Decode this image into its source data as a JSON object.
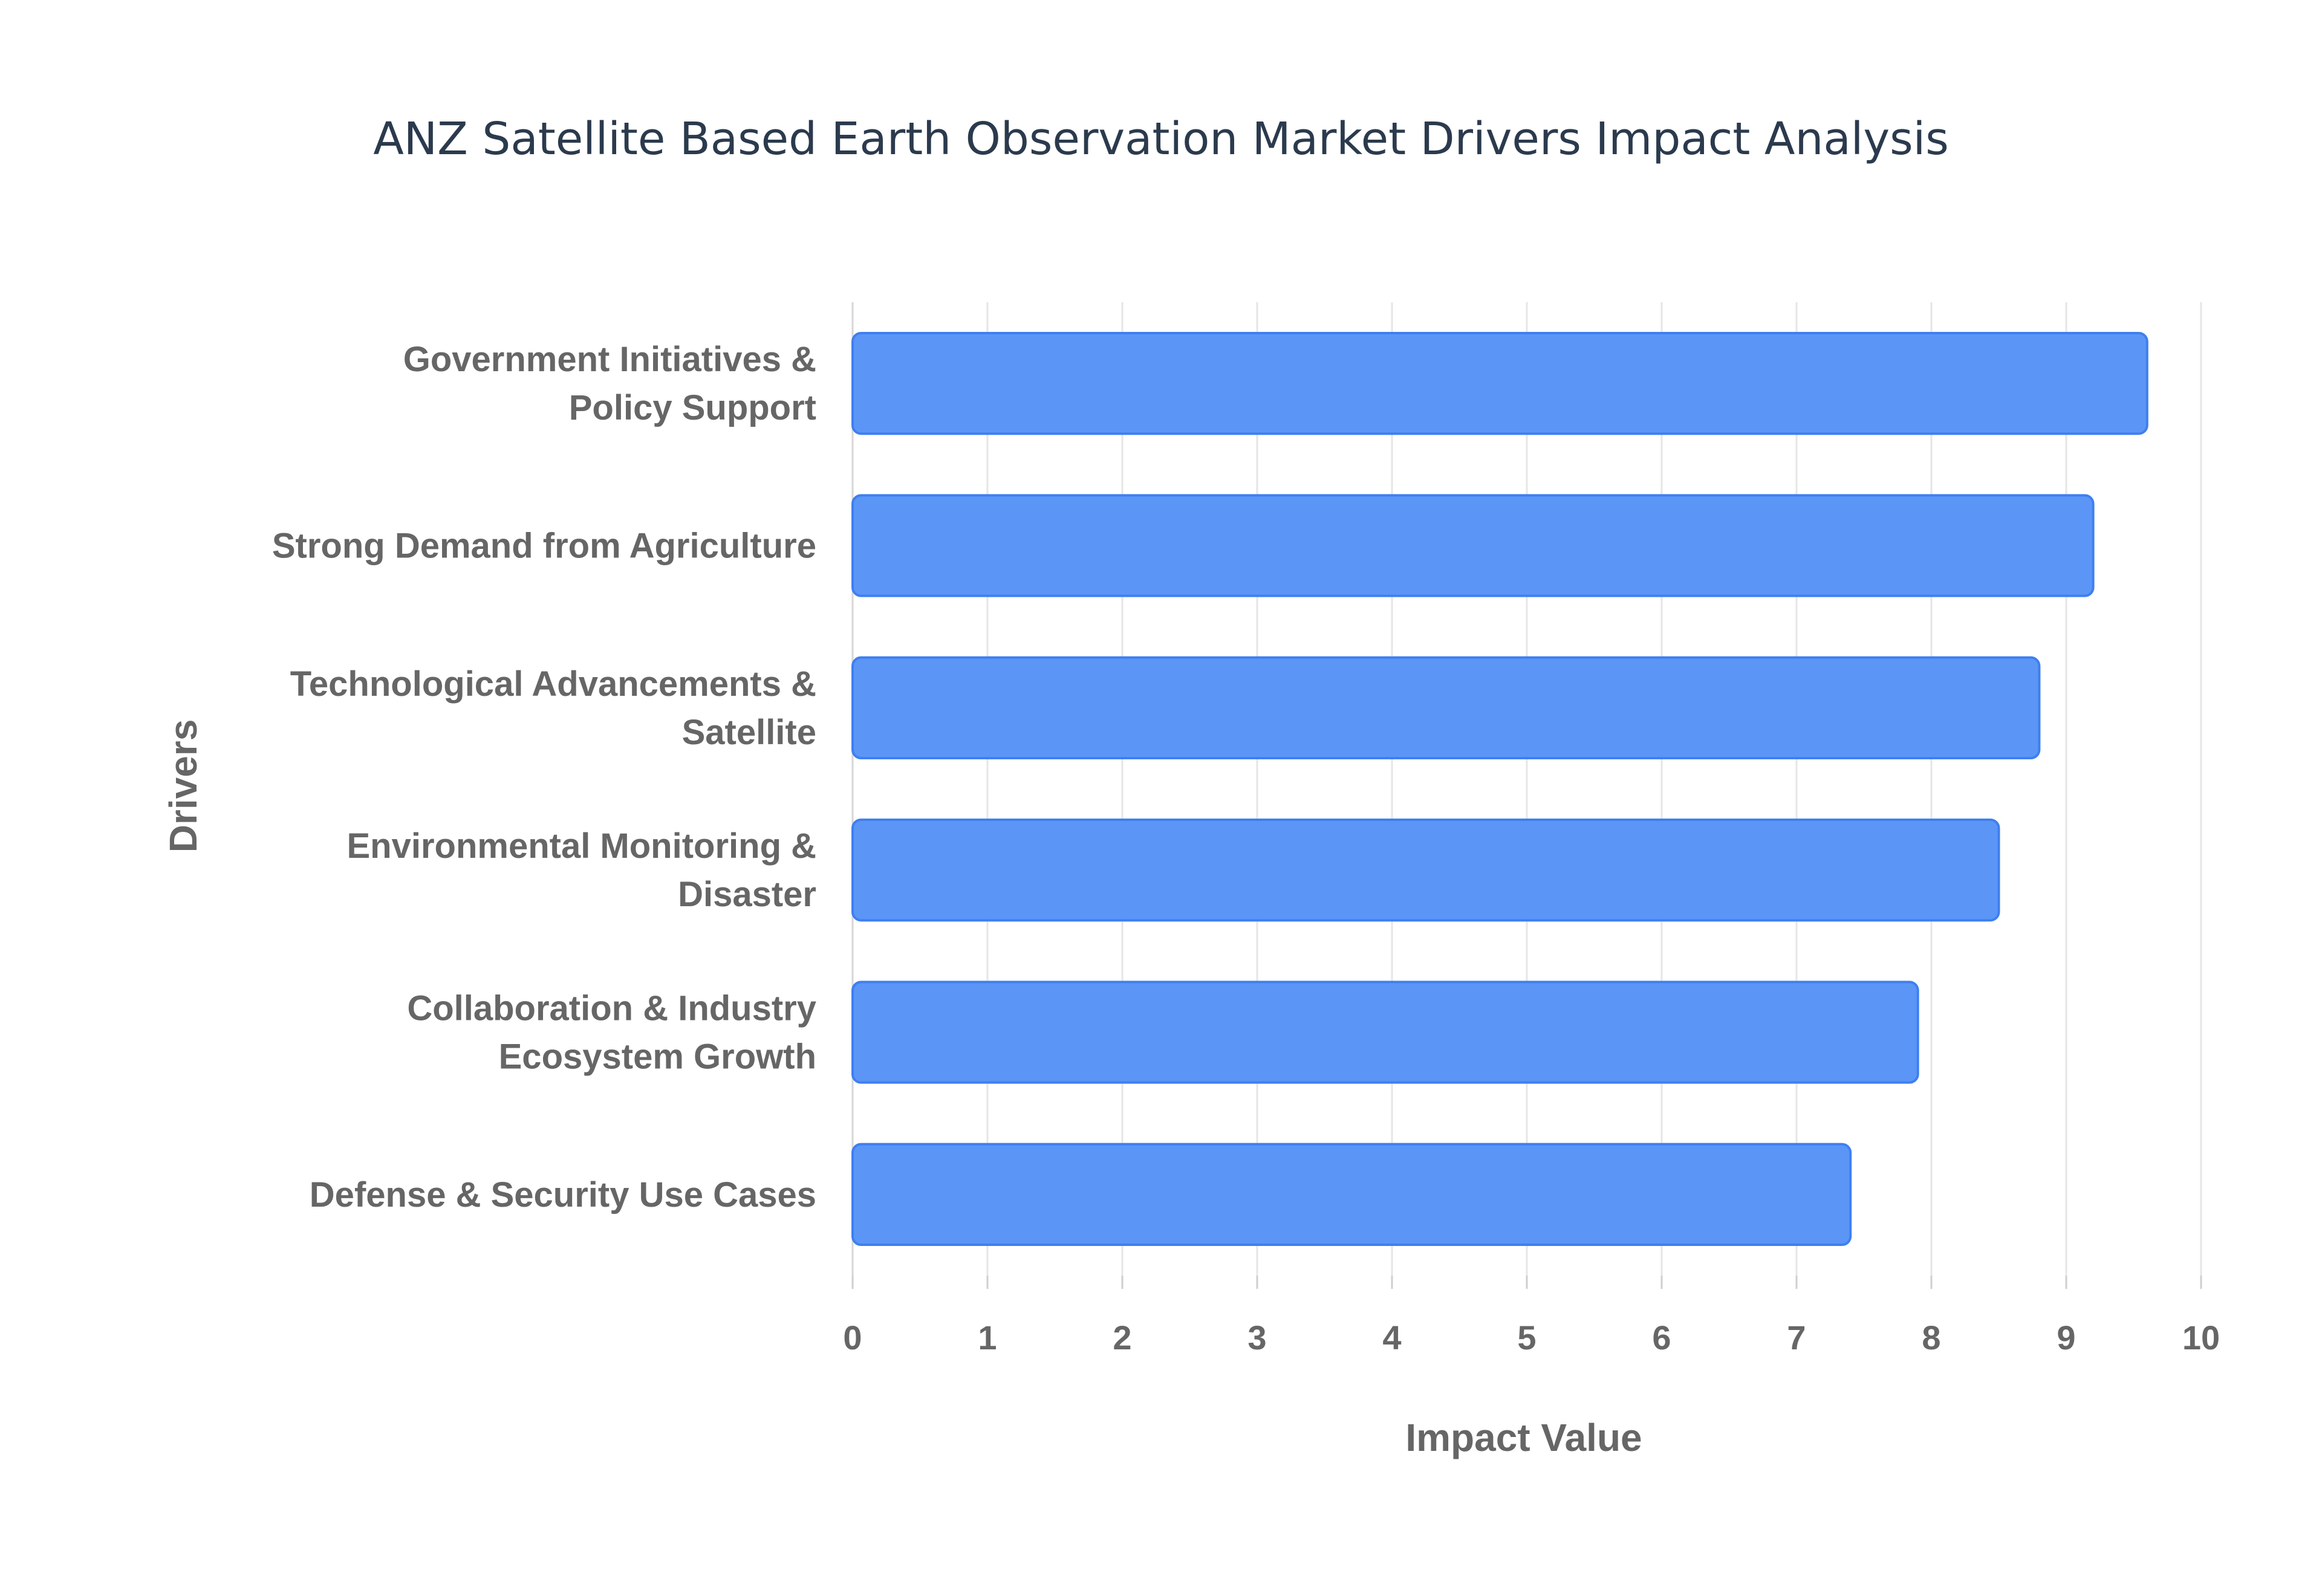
{
  "chart_data": {
    "type": "bar",
    "orientation": "horizontal",
    "title": "ANZ Satellite Based Earth Observation Market Drivers Impact Analysis",
    "xlabel": "Impact Value",
    "ylabel": "Drivers",
    "xlim": [
      0,
      10
    ],
    "xticks": [
      "0",
      "1",
      "2",
      "3",
      "4",
      "5",
      "6",
      "7",
      "8",
      "9",
      "10"
    ],
    "grid": true,
    "bar_color": "#5b96f7",
    "bar_edge_color": "#3f7ff0",
    "categories": [
      [
        "Government Initiatives &",
        "Policy Support"
      ],
      [
        "Strong Demand from Agriculture"
      ],
      [
        "Technological Advancements &",
        "Satellite"
      ],
      [
        "Environmental Monitoring &",
        "Disaster"
      ],
      [
        "Collaboration & Industry",
        "Ecosystem Growth"
      ],
      [
        "Defense & Security Use Cases"
      ]
    ],
    "values": [
      9.6,
      9.2,
      8.8,
      8.5,
      7.9,
      7.4
    ]
  }
}
